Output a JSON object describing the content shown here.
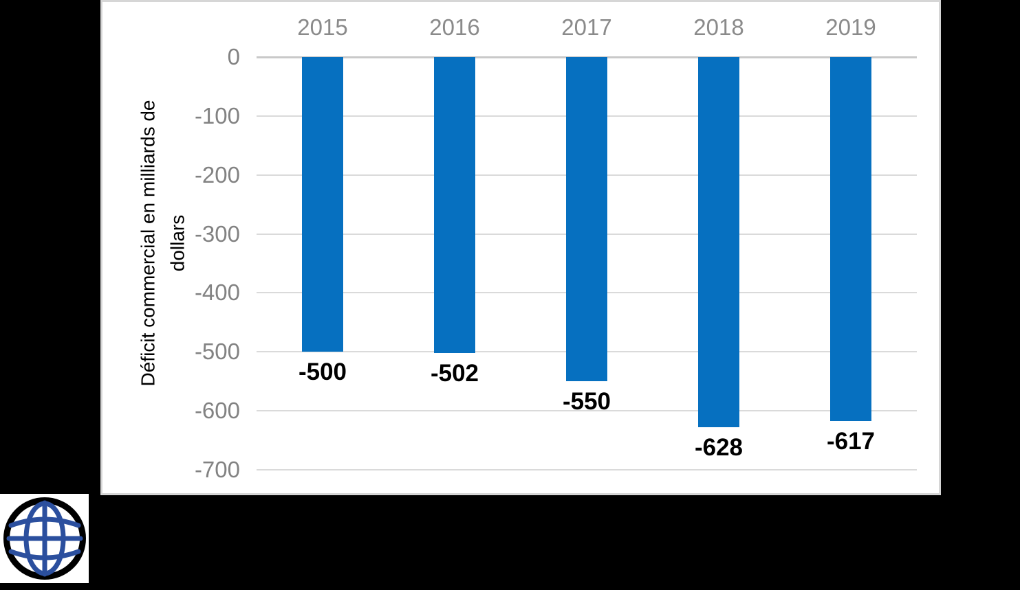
{
  "canvas": {
    "background": "#000000"
  },
  "panel": {
    "background": "#FFFFFF",
    "border_color": "#D6D6D6"
  },
  "chart_data": {
    "type": "bar",
    "title": "",
    "categories": [
      "2015",
      "2016",
      "2017",
      "2018",
      "2019"
    ],
    "values": [
      -500,
      -502,
      -550,
      -628,
      -617
    ],
    "data_labels": [
      "-500",
      "-502",
      "-550",
      "-628",
      "-617"
    ],
    "ylabel_line1": "Déficit commercial en milliards de",
    "ylabel_line2": "dollars",
    "yticks": [
      0,
      -100,
      -200,
      -300,
      -400,
      -500,
      -600,
      -700
    ],
    "ytick_labels": [
      "0",
      "-100",
      "-200",
      "-300",
      "-400",
      "-500",
      "-600",
      "-700"
    ],
    "ylim": [
      -700,
      0
    ],
    "grid": true,
    "legend": false,
    "category_labels_position": "top",
    "bar_color": "#0670C0",
    "grid_color": "#DADADA",
    "zero_line_color": "#C9C9C9",
    "tick_color": "#828282",
    "category_color": "#8A8A8A",
    "data_label_color": "#000000"
  },
  "footer": {
    "globe_icon": {
      "name": "globe-icon",
      "ring_color": "#000000",
      "grid_color": "#2B4F9E",
      "background": "#FFFFFF"
    }
  }
}
